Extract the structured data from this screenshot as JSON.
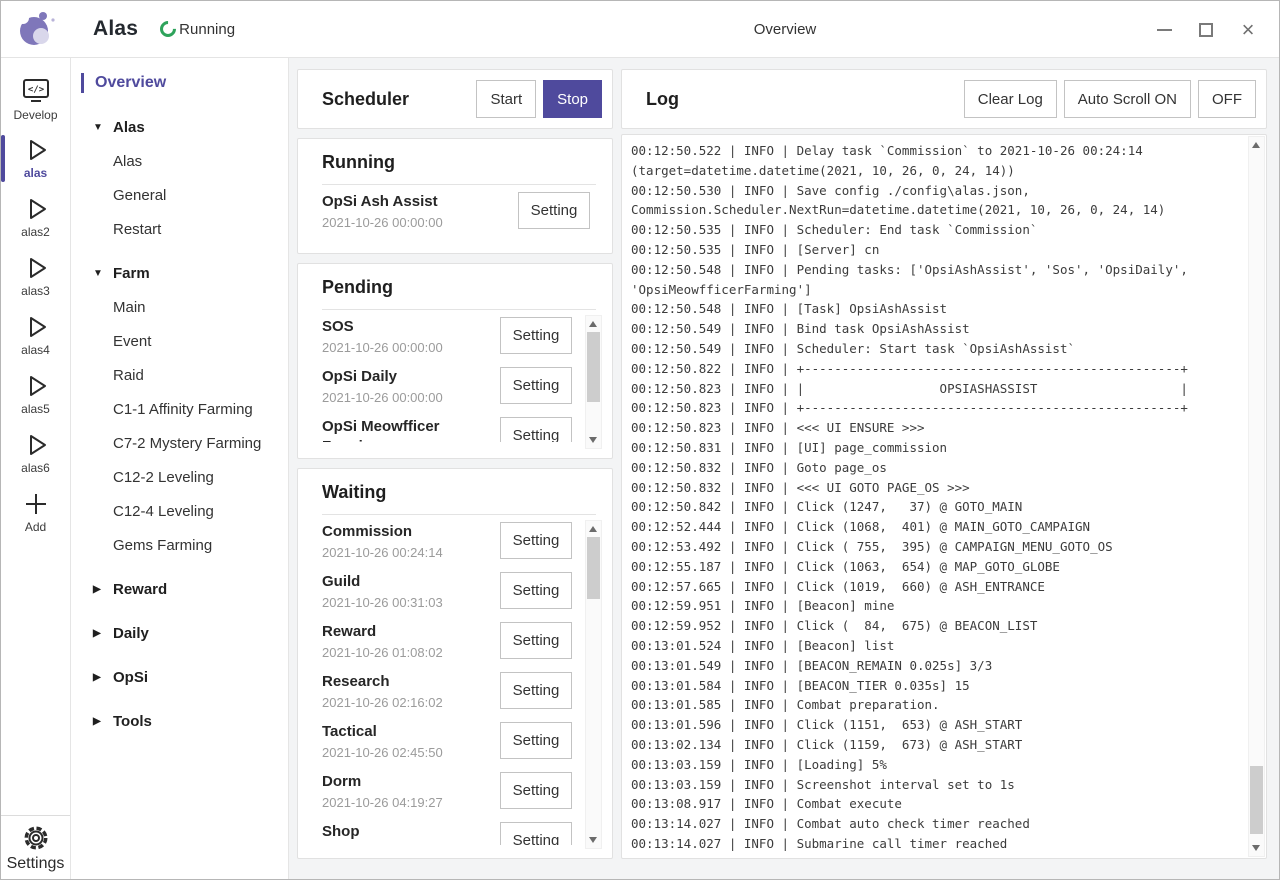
{
  "labels": {
    "setting": "Setting"
  },
  "window": {
    "app_title": "Alas",
    "status": "Running",
    "page_title": "Overview"
  },
  "nav_rail": {
    "develop_label": "Develop",
    "instances": [
      {
        "label": "alas",
        "active": true
      },
      {
        "label": "alas2",
        "active": false
      },
      {
        "label": "alas3",
        "active": false
      },
      {
        "label": "alas4",
        "active": false
      },
      {
        "label": "alas5",
        "active": false
      },
      {
        "label": "alas6",
        "active": false
      }
    ],
    "add_label": "Add",
    "settings_label": "Settings"
  },
  "menu": {
    "overview_label": "Overview",
    "groups": [
      {
        "label": "Alas",
        "expanded": true,
        "items": [
          "Alas",
          "General",
          "Restart"
        ]
      },
      {
        "label": "Farm",
        "expanded": true,
        "items": [
          "Main",
          "Event",
          "Raid",
          "C1-1 Affinity Farming",
          "C7-2 Mystery Farming",
          "C12-2 Leveling",
          "C12-4 Leveling",
          "Gems Farming"
        ]
      },
      {
        "label": "Reward",
        "expanded": false,
        "items": []
      },
      {
        "label": "Daily",
        "expanded": false,
        "items": []
      },
      {
        "label": "OpSi",
        "expanded": false,
        "items": []
      },
      {
        "label": "Tools",
        "expanded": false,
        "items": []
      }
    ]
  },
  "scheduler": {
    "title": "Scheduler",
    "start_label": "Start",
    "stop_label": "Stop"
  },
  "running": {
    "title": "Running",
    "tasks": [
      {
        "name": "OpSi Ash Assist",
        "time": "2021-10-26 00:00:00"
      }
    ]
  },
  "pending": {
    "title": "Pending",
    "tasks": [
      {
        "name": "SOS",
        "time": "2021-10-26 00:00:00"
      },
      {
        "name": "OpSi Daily",
        "time": "2021-10-26 00:00:00"
      },
      {
        "name": "OpSi Meowfficer Farming",
        "time": ""
      }
    ]
  },
  "waiting": {
    "title": "Waiting",
    "tasks": [
      {
        "name": "Commission",
        "time": "2021-10-26 00:24:14"
      },
      {
        "name": "Guild",
        "time": "2021-10-26 00:31:03"
      },
      {
        "name": "Reward",
        "time": "2021-10-26 01:08:02"
      },
      {
        "name": "Research",
        "time": "2021-10-26 02:16:02"
      },
      {
        "name": "Tactical",
        "time": "2021-10-26 02:45:50"
      },
      {
        "name": "Dorm",
        "time": "2021-10-26 04:19:27"
      },
      {
        "name": "Shop",
        "time": ""
      }
    ]
  },
  "log": {
    "title": "Log",
    "clear_label": "Clear Log",
    "autoscroll_label": "Auto Scroll ON",
    "off_label": "OFF",
    "lines": [
      "00:12:50.522 | INFO | Delay task `Commission` to 2021-10-26 00:24:14",
      "(target=datetime.datetime(2021, 10, 26, 0, 24, 14))",
      "00:12:50.530 | INFO | Save config ./config\\alas.json,",
      "Commission.Scheduler.NextRun=datetime.datetime(2021, 10, 26, 0, 24, 14)",
      "00:12:50.535 | INFO | Scheduler: End task `Commission`",
      "00:12:50.535 | INFO | [Server] cn",
      "00:12:50.548 | INFO | Pending tasks: ['OpsiAshAssist', 'Sos', 'OpsiDaily',",
      "'OpsiMeowfficerFarming']",
      "00:12:50.548 | INFO | [Task] OpsiAshAssist",
      "00:12:50.549 | INFO | Bind task OpsiAshAssist",
      "00:12:50.549 | INFO | Scheduler: Start task `OpsiAshAssist`",
      "00:12:50.822 | INFO | +--------------------------------------------------+",
      "00:12:50.823 | INFO | |                  OPSIASHASSIST                   |",
      "00:12:50.823 | INFO | +--------------------------------------------------+",
      "00:12:50.823 | INFO | <<< UI ENSURE >>>",
      "00:12:50.831 | INFO | [UI] page_commission",
      "00:12:50.832 | INFO | Goto page_os",
      "00:12:50.832 | INFO | <<< UI GOTO PAGE_OS >>>",
      "00:12:50.842 | INFO | Click (1247,   37) @ GOTO_MAIN",
      "00:12:52.444 | INFO | Click (1068,  401) @ MAIN_GOTO_CAMPAIGN",
      "00:12:53.492 | INFO | Click ( 755,  395) @ CAMPAIGN_MENU_GOTO_OS",
      "00:12:55.187 | INFO | Click (1063,  654) @ MAP_GOTO_GLOBE",
      "00:12:57.665 | INFO | Click (1019,  660) @ ASH_ENTRANCE",
      "00:12:59.951 | INFO | [Beacon] mine",
      "00:12:59.952 | INFO | Click (  84,  675) @ BEACON_LIST",
      "00:13:01.524 | INFO | [Beacon] list",
      "00:13:01.549 | INFO | [BEACON_REMAIN 0.025s] 3/3",
      "00:13:01.584 | INFO | [BEACON_TIER 0.035s] 15",
      "00:13:01.585 | INFO | Combat preparation.",
      "00:13:01.596 | INFO | Click (1151,  653) @ ASH_START",
      "00:13:02.134 | INFO | Click (1159,  673) @ ASH_START",
      "00:13:03.159 | INFO | [Loading] 5%",
      "00:13:03.159 | INFO | Screenshot interval set to 1s",
      "00:13:08.917 | INFO | Combat execute",
      "00:13:14.027 | INFO | Combat auto check timer reached",
      "00:13:14.027 | INFO | Submarine call timer reached"
    ]
  },
  "colors": {
    "accent": "#4f4a9d",
    "running_green": "#2ea35b"
  }
}
